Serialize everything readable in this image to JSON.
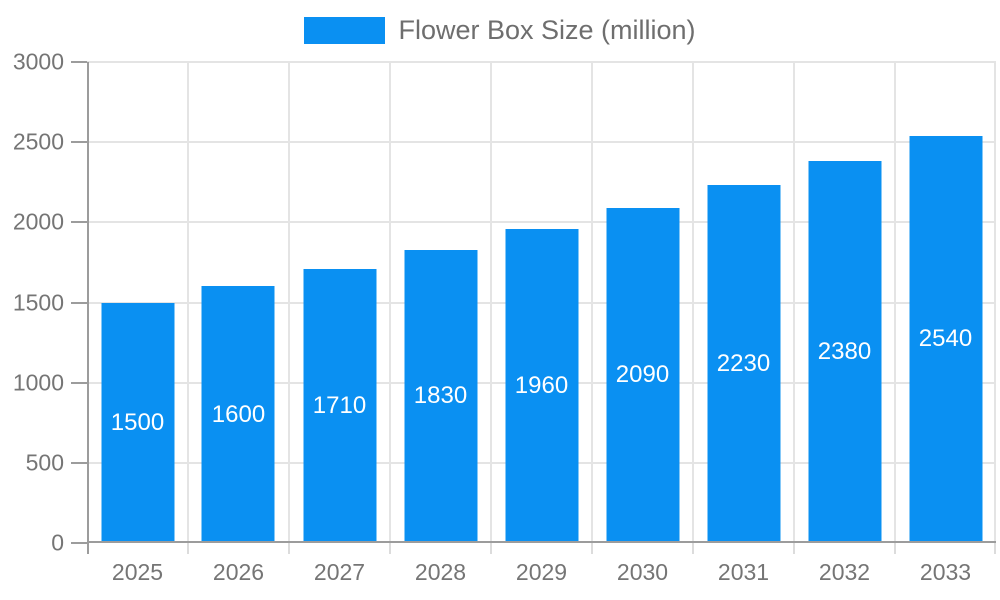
{
  "chart_data": {
    "type": "bar",
    "title": "Flower Box Size (million)",
    "categories": [
      "2025",
      "2026",
      "2027",
      "2028",
      "2029",
      "2030",
      "2031",
      "2032",
      "2033"
    ],
    "values": [
      1500,
      1600,
      1710,
      1830,
      1960,
      2090,
      2230,
      2380,
      2540
    ],
    "yticks": [
      0,
      500,
      1000,
      1500,
      2000,
      2500,
      3000
    ],
    "ylim": [
      0,
      3000
    ],
    "xlabel": "",
    "ylabel": "",
    "grid": true,
    "legend_position": "top-center",
    "bar_labels_inside": true,
    "colors": {
      "bar": "#0a90f2",
      "bar_label": "#ffffff",
      "axis_text": "#757575",
      "legend_text": "#6e6e6e",
      "gridline": "#e4e4e4",
      "axis_line": "#9c9c9c",
      "x_tick": "#dcdcdc"
    }
  }
}
